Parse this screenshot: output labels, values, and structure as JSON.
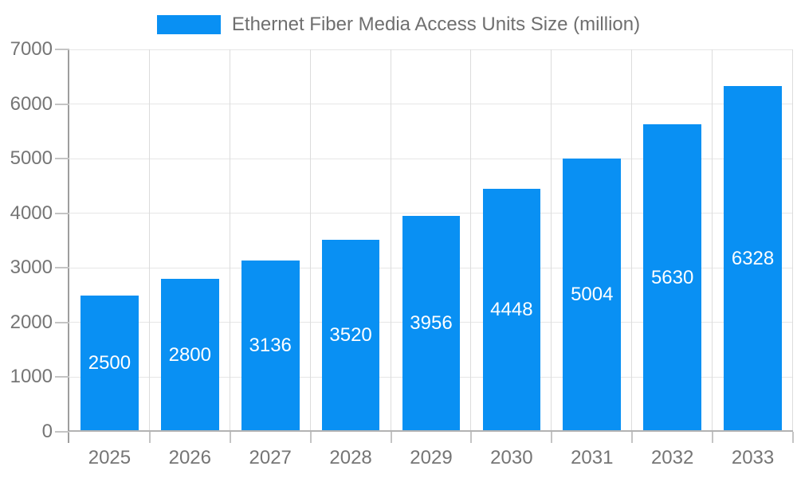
{
  "chart_data": {
    "type": "bar",
    "title": "Ethernet Fiber Media Access Units Size (million)",
    "categories": [
      "2025",
      "2026",
      "2027",
      "2028",
      "2029",
      "2030",
      "2031",
      "2032",
      "2033"
    ],
    "values": [
      2500,
      2800,
      3136,
      3520,
      3956,
      4448,
      5004,
      5630,
      6328
    ],
    "bar_value_labels": [
      "2500",
      "2800",
      "3136",
      "3520",
      "3956",
      "4448",
      "5004",
      "5630",
      "6328"
    ],
    "ytick_labels": [
      "0",
      "1000",
      "2000",
      "3000",
      "4000",
      "5000",
      "6000",
      "7000"
    ],
    "ylim": [
      0,
      7000
    ],
    "ytick_step": 1000,
    "xlabel": "",
    "ylabel": "",
    "grid": true,
    "legend_position": "top-center",
    "value_label_position": "inside-center"
  },
  "colors": {
    "bar": "#0990f3",
    "bar_label": "#ffffff",
    "legend_text": "#6f6f6f",
    "tick_text": "#757575",
    "grid_horizontal": "#e6e6e6",
    "grid_vertical": "#dcdcdc",
    "y_axis": "#9e9e9e",
    "x_axis": "#b3b3b3",
    "tick_mark": "#c4c4c4"
  }
}
